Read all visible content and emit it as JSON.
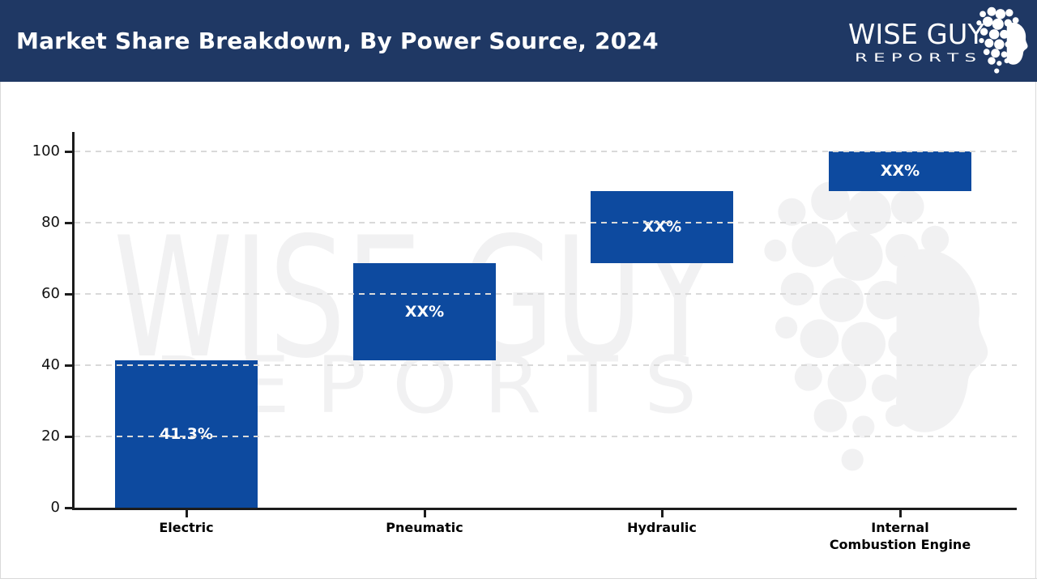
{
  "header": {
    "title": "Market Share Breakdown, By Power Source, 2024",
    "logo": {
      "line1": "WISE GUY",
      "line2": "R E P O R T S"
    },
    "colors": {
      "background": "#1f3864",
      "text": "#ffffff"
    }
  },
  "watermark": {
    "line1": "WISE GUY",
    "line2": "R E P O R T S"
  },
  "chart_data": {
    "type": "bar",
    "subtype": "waterfall",
    "title": "Market Share Breakdown, By Power Source, 2024",
    "categories": [
      "Electric",
      "Pneumatic",
      "Hydraulic",
      "Internal Combustion Engine"
    ],
    "segments": [
      {
        "category": "Electric",
        "start": 0,
        "end": 41.3,
        "label": "41.3%"
      },
      {
        "category": "Pneumatic",
        "start": 41.3,
        "end": 68.6,
        "label": "XX%"
      },
      {
        "category": "Hydraulic",
        "start": 68.6,
        "end": 88.9,
        "label": "XX%"
      },
      {
        "category": "Internal Combustion Engine",
        "start": 88.9,
        "end": 100,
        "label": "XX%"
      }
    ],
    "ylim": [
      0,
      100
    ],
    "yticks": [
      "0",
      "20",
      "40",
      "60",
      "80",
      "100"
    ],
    "xlabel": "",
    "ylabel": "",
    "grid": "horizontal-dashed",
    "legend_position": "none",
    "colors": {
      "bar": "#0d4a9f",
      "bar_label": "#ffffff",
      "grid": "#d9d9d9",
      "axis": "#1c1c1c",
      "watermark": "#f1f1f2"
    }
  }
}
